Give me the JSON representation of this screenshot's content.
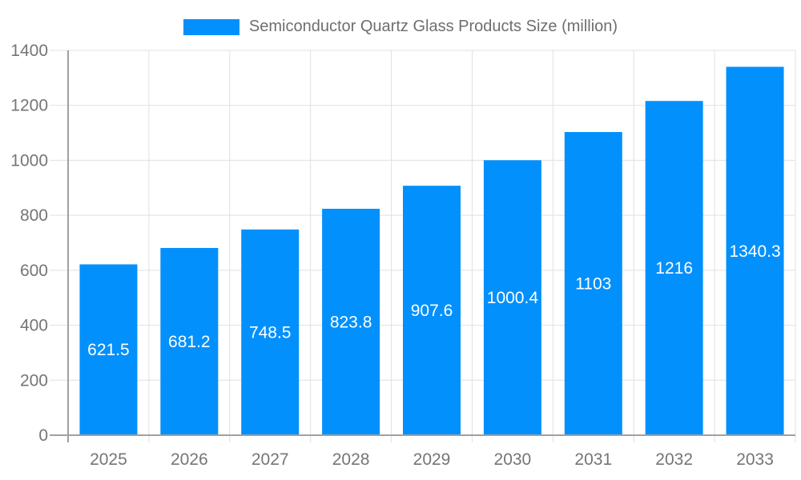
{
  "legend": {
    "label": "Semiconductor Quartz Glass Products Size (million)"
  },
  "chart_data": {
    "type": "bar",
    "title": "Semiconductor Quartz Glass Products Size (million)",
    "series_name": "Semiconductor Quartz Glass Products Size (million)",
    "categories": [
      "2025",
      "2026",
      "2027",
      "2028",
      "2029",
      "2030",
      "2031",
      "2032",
      "2033"
    ],
    "values": [
      621.5,
      681.2,
      748.5,
      823.8,
      907.6,
      1000.4,
      1103,
      1216,
      1340.3
    ],
    "value_labels": [
      "621.5",
      "681.2",
      "748.5",
      "823.8",
      "907.6",
      "1000.4",
      "1103",
      "1216",
      "1340.3"
    ],
    "xlabel": "",
    "ylabel": "",
    "ylim": [
      0,
      1400
    ],
    "ytick_step": 200,
    "ytick_labels": [
      "0",
      "200",
      "400",
      "600",
      "800",
      "1000",
      "1200",
      "1400"
    ],
    "grid": true,
    "legend_position": "top",
    "value_label_position": "inside-center",
    "colors": {
      "bar": "#0290fc",
      "gridline": "#e0e0e0",
      "axis": "#a0a0a0",
      "tick_label": "#757575",
      "value_label": "#ffffff",
      "legend_text": "#6e6e6e",
      "background": "#ffffff"
    }
  }
}
